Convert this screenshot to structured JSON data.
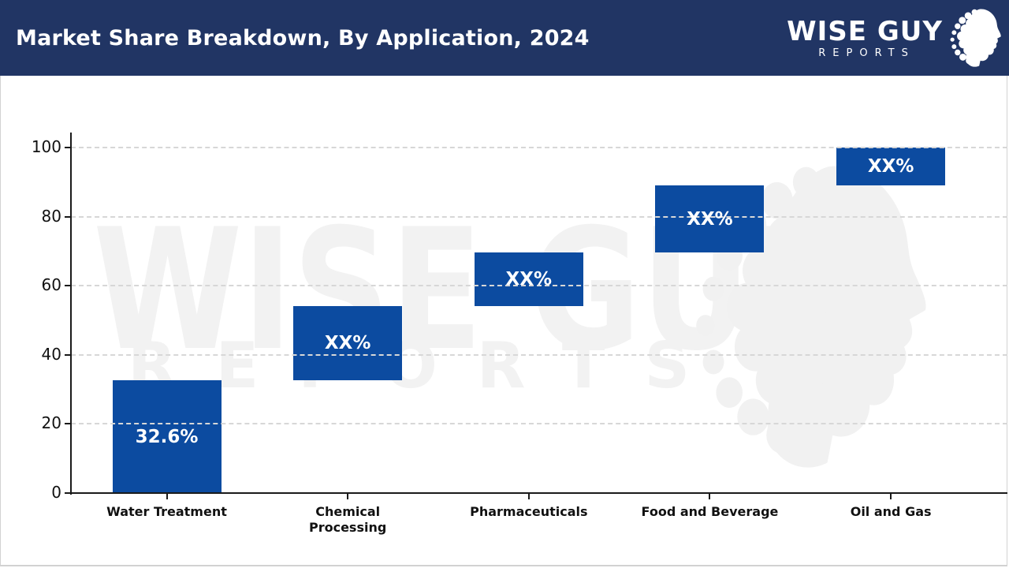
{
  "header": {
    "title": "Market Share Breakdown, By Application, 2024",
    "logo": {
      "line1": "WISE GUY",
      "line2": "REPORTS",
      "face_icon": "dotted-face-profile-icon"
    }
  },
  "watermark": {
    "line1": "WISE GUY",
    "line2": "REPORTS",
    "face_icon": "dotted-face-profile-icon"
  },
  "colors": {
    "header_bg": "#213564",
    "bar": "#0C4BA0",
    "bar_label": "#ffffff",
    "axis": "#1a1a1a",
    "gridline": "#d7d7d7",
    "watermark": "#f2f2f2",
    "frame_border": "#d2d2d2"
  },
  "chart_data": {
    "type": "bar",
    "subtype": "waterfall",
    "title": "Market Share Breakdown, By Application, 2024",
    "categories": [
      "Water Treatment",
      "Chemical\nProcessing",
      "Pharmaceuticals",
      "Food and Beverage",
      "Oil and Gas"
    ],
    "segments": [
      [
        0,
        32.6
      ],
      [
        32.6,
        54.2
      ],
      [
        54.2,
        69.6
      ],
      [
        69.6,
        89.0
      ],
      [
        89.0,
        100.0
      ]
    ],
    "bar_labels": [
      "32.6%",
      "XX%",
      "XX%",
      "XX%",
      "XX%"
    ],
    "xlabel": "",
    "ylabel": "",
    "y_ticks": [
      0,
      20,
      40,
      60,
      80,
      100
    ],
    "ylim": [
      0,
      100
    ],
    "grid": "dashed-horizontal",
    "legend": "none"
  }
}
